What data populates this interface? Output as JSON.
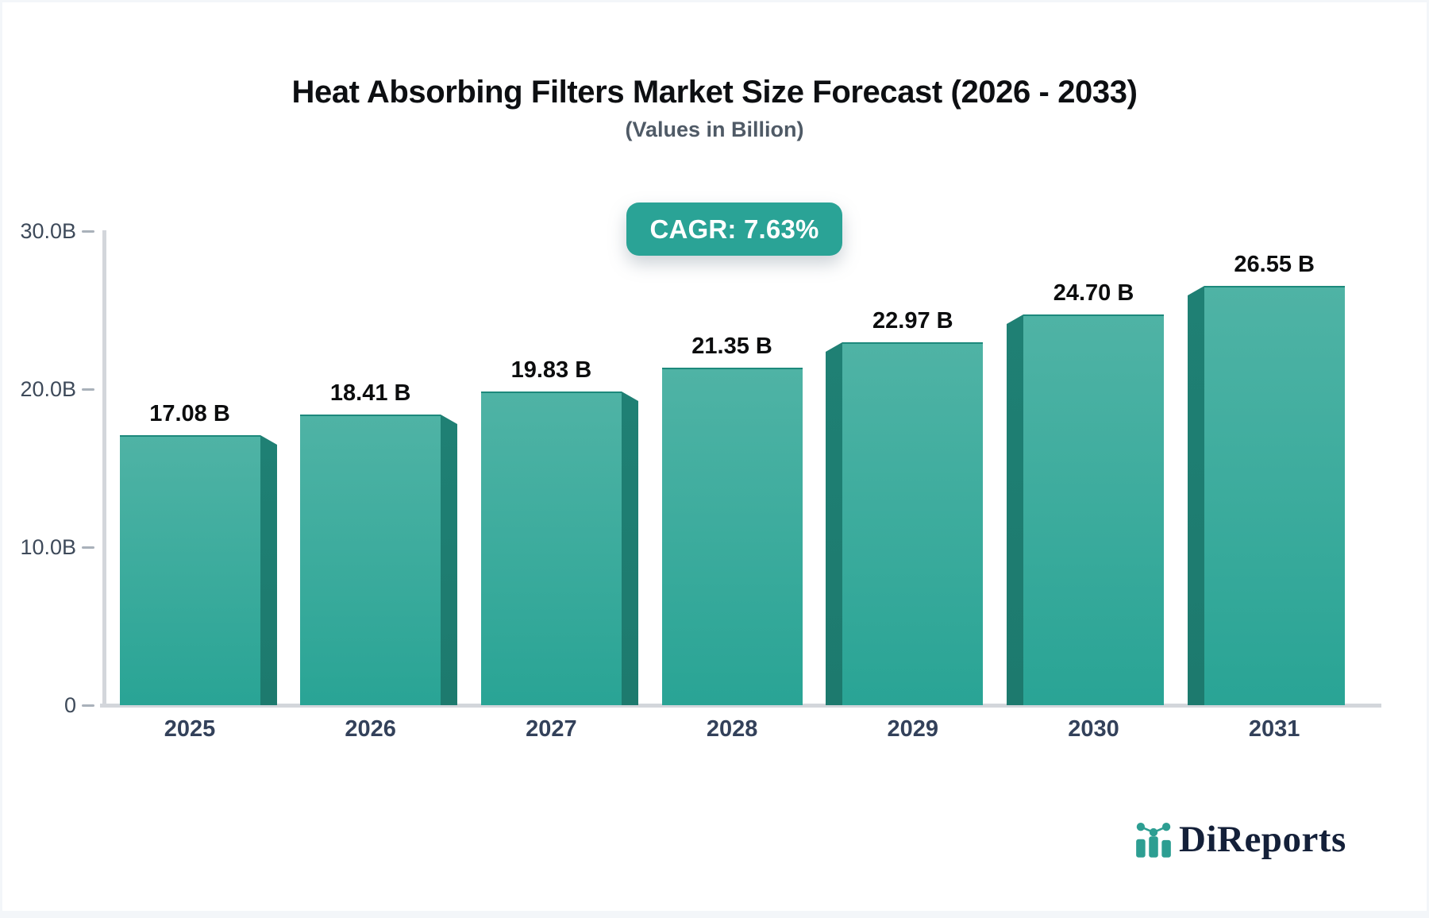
{
  "header": {
    "title": "Heat Absorbing Filters Market Size Forecast (2026 - 2033)",
    "subtitle": "(Values in Billion)"
  },
  "badge": {
    "label": "CAGR: 7.63%",
    "background": "#2aa396",
    "text_color": "#ffffff"
  },
  "chart_data": {
    "type": "bar",
    "title": "Heat Absorbing Filters Market Size Forecast (2026 - 2033)",
    "subtitle": "(Values in Billion)",
    "categories": [
      "2025",
      "2026",
      "2027",
      "2028",
      "2029",
      "2030",
      "2031"
    ],
    "values": [
      17.08,
      18.41,
      19.83,
      21.35,
      22.97,
      24.7,
      26.55
    ],
    "value_labels": [
      "17.08 B",
      "18.41 B",
      "19.83 B",
      "21.35 B",
      "22.97 B",
      "24.70 B",
      "26.55 B"
    ],
    "unit": "Billion",
    "ylim": [
      0,
      30
    ],
    "yticks": [
      {
        "value": 30,
        "label": "30.0B"
      },
      {
        "value": 20,
        "label": "20.0B"
      },
      {
        "value": 10,
        "label": "10.0B"
      },
      {
        "value": 0,
        "label": "0"
      }
    ],
    "grid": false,
    "legend": false,
    "bar_colors": {
      "front_top": "#4fb3a5",
      "front_bottom": "#29a495",
      "side_top": "#1f8074",
      "side_bottom": "#1d7a6e"
    },
    "axis_color": "#d3d6db",
    "tick_color": "#a9b1ba"
  },
  "logo": {
    "text": "DiReports",
    "icon": "mini-bar-chart-logo-icon",
    "icon_color": "#2d9e92",
    "text_color": "#142039"
  }
}
